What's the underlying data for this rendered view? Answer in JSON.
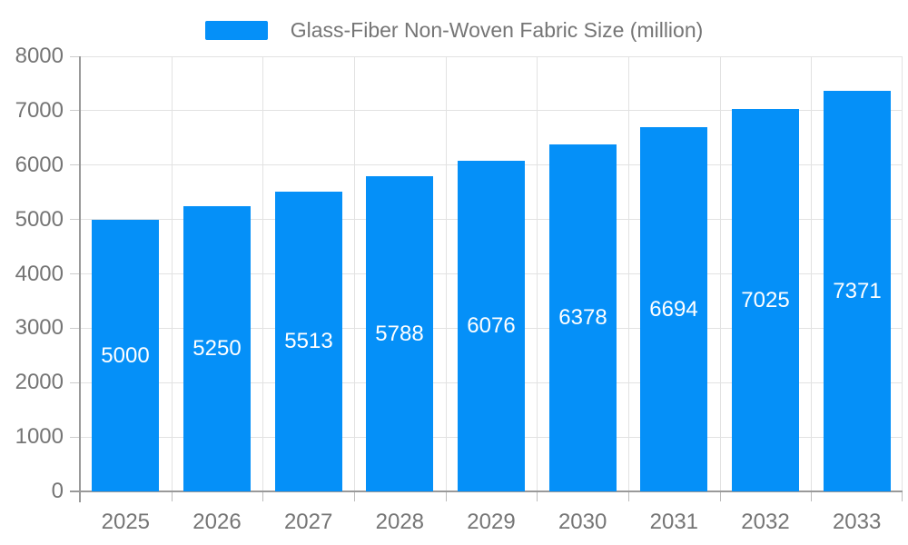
{
  "legend": {
    "label": "Glass-Fiber Non-Woven Fabric Size (million)"
  },
  "chart_data": {
    "type": "bar",
    "title": "Glass-Fiber Non-Woven Fabric Size (million)",
    "categories": [
      "2025",
      "2026",
      "2027",
      "2028",
      "2029",
      "2030",
      "2031",
      "2032",
      "2033"
    ],
    "values": [
      5000,
      5250,
      5513,
      5788,
      6076,
      6378,
      6694,
      7025,
      7371
    ],
    "xlabel": "",
    "ylabel": "",
    "ylim": [
      0,
      8000
    ],
    "ytick_step": 1000,
    "yticks": [
      "0",
      "1000",
      "2000",
      "3000",
      "4000",
      "5000",
      "6000",
      "7000",
      "8000"
    ],
    "grid": true,
    "legend_position": "top",
    "bar_labels_inside": true,
    "colors": {
      "bar": "#0590f8",
      "bar_label": "#ffffff",
      "axis": "#999999",
      "grid": "#e2e2e2",
      "tick_label": "#757575"
    }
  }
}
